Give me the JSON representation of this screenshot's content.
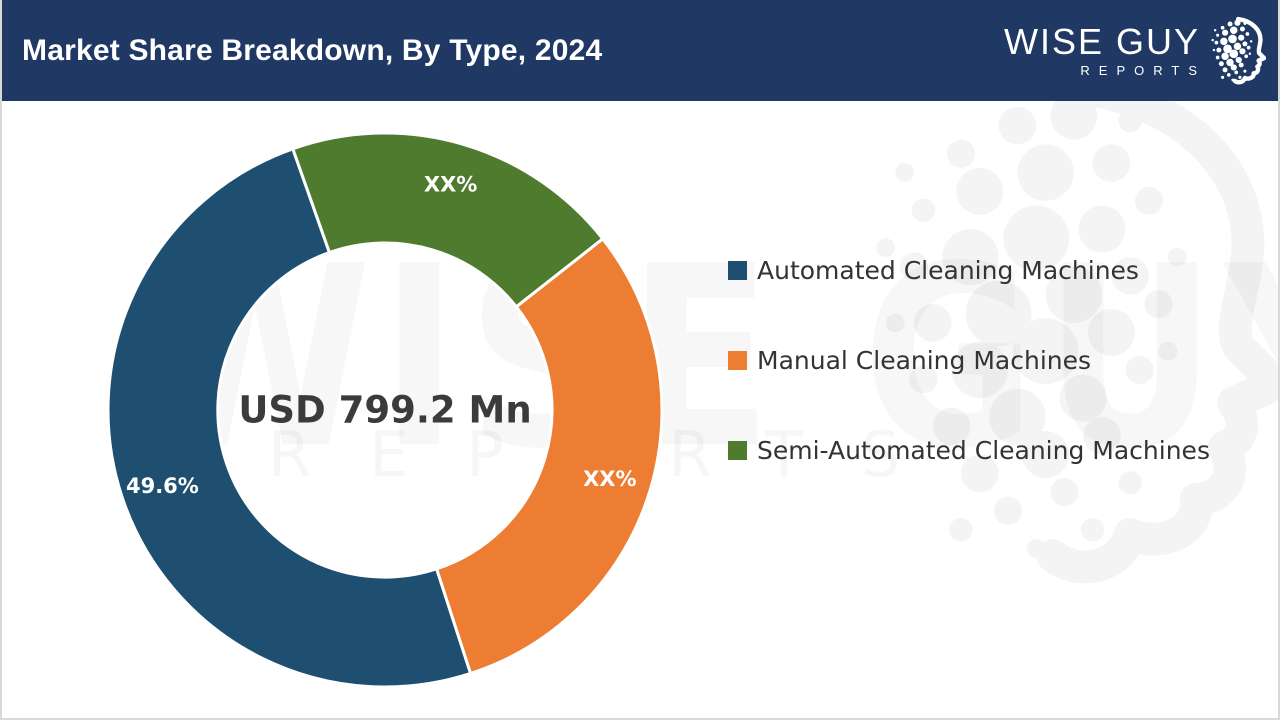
{
  "header": {
    "title": "Market Share Breakdown, By Type, 2024",
    "logo_line1": "WISE GUY",
    "logo_line2": "REPORTS"
  },
  "watermark": {
    "line1": "WISE GUY",
    "line2": "REPORTS"
  },
  "chart_data": {
    "type": "pie",
    "subtype": "donut",
    "title": "Market Share Breakdown, By Type, 2024",
    "center_label": "USD 799.2 Mn",
    "start_angle_deg": 162,
    "segments": [
      {
        "name": "Automated Cleaning Machines",
        "pct": 49.6,
        "label": "49.6%",
        "color": "#1f4f70"
      },
      {
        "name": "Semi-Automated Cleaning Machines",
        "pct": 19.8,
        "label": "XX%",
        "color": "#4e7b2d"
      },
      {
        "name": "Manual Cleaning Machines",
        "pct": 30.6,
        "label": "XX%",
        "color": "#ec7d33"
      }
    ],
    "legend": [
      {
        "label": "Automated Cleaning Machines",
        "color": "#1f4f70"
      },
      {
        "label": "Manual Cleaning Machines",
        "color": "#ec7d33"
      },
      {
        "label": "Semi-Automated Cleaning Machines",
        "color": "#4e7b2d"
      }
    ],
    "legend_position": "right"
  },
  "colors": {
    "header_bg": "#1f3864",
    "center_text": "#3b3b3b",
    "legend_text": "#333333"
  }
}
